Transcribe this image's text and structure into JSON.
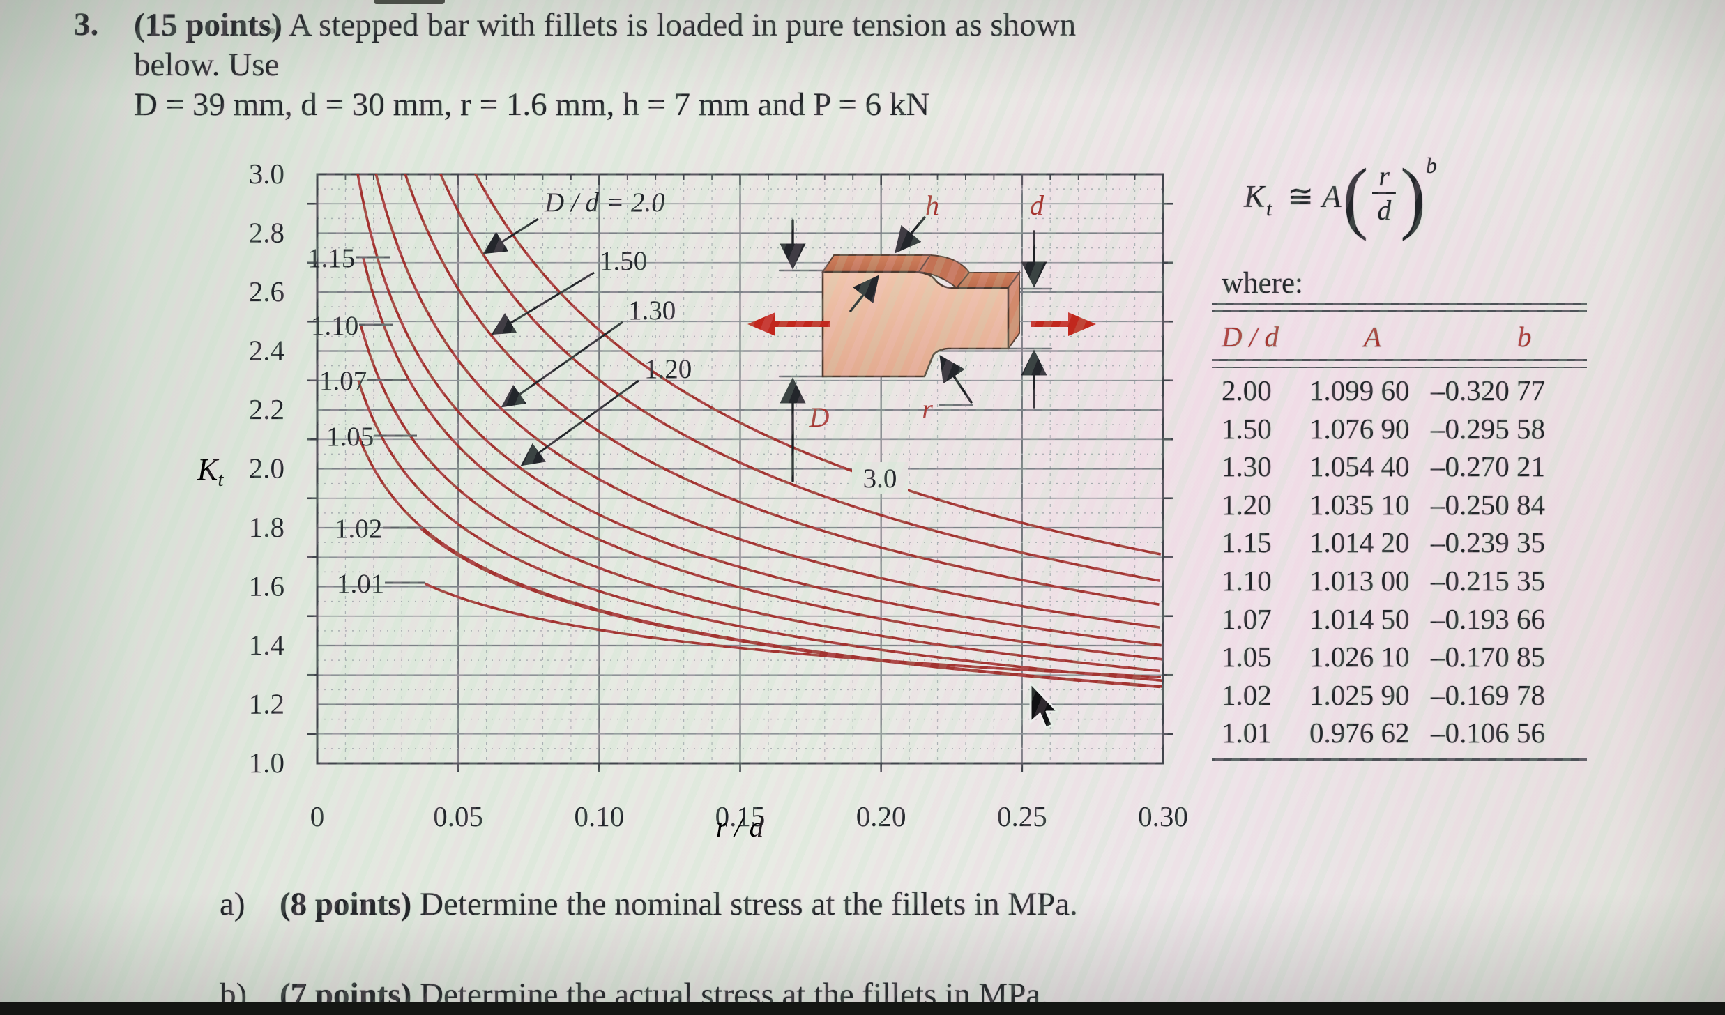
{
  "problem": {
    "number": "3.",
    "points_label": "(15 points)",
    "line1_rest": " A stepped bar with fillets is loaded in pure tension as shown below. Use",
    "line2": "D = 39 mm, d = 30 mm, r = 1.6 mm, h = 7 mm and P = 6 kN",
    "parts": [
      {
        "label": "a)",
        "points": "(8 points)",
        "text": " Determine the nominal stress at the fillets in MPa."
      },
      {
        "label": "b)",
        "points": "(7 points)",
        "text": " Determine the actual stress at the fillets in MPa."
      }
    ]
  },
  "formula": {
    "lhs": "K",
    "lhs_sub": "t",
    "rel": "≅",
    "coeff": "A",
    "open_paren": "(",
    "num": "r",
    "den": "d",
    "close_paren": ")",
    "exp": "b",
    "where_label": "where:"
  },
  "table": {
    "headers": [
      "D / d",
      "A",
      "b"
    ],
    "rows": [
      [
        "2.00",
        "1.099 60",
        "–0.320 77"
      ],
      [
        "1.50",
        "1.076 90",
        "–0.295 58"
      ],
      [
        "1.30",
        "1.054 40",
        "–0.270 21"
      ],
      [
        "1.20",
        "1.035 10",
        "–0.250 84"
      ],
      [
        "1.15",
        "1.014 20",
        "–0.239 35"
      ],
      [
        "1.10",
        "1.013 00",
        "–0.215 35"
      ],
      [
        "1.07",
        "1.014 50",
        "–0.193 66"
      ],
      [
        "1.05",
        "1.026 10",
        "–0.170 85"
      ],
      [
        "1.02",
        "1.025 90",
        "–0.169 78"
      ],
      [
        "1.01",
        "0.976 62",
        "–0.106 56"
      ]
    ]
  },
  "diagram": {
    "labels": {
      "h": "h",
      "d": "d",
      "D": "D",
      "r": "r"
    }
  },
  "chart_data": {
    "type": "line",
    "model": "Kt = A * (r/d)^b",
    "xlabel": "r / d",
    "ylabel_main": "K",
    "ylabel_sub": "t",
    "xlim": [
      0,
      0.3
    ],
    "ylim": [
      1.0,
      3.0
    ],
    "grid": true,
    "curve_color": "#a23330",
    "x_ticks": [
      "0",
      "0.05",
      "0.10",
      "0.15",
      "0.20",
      "0.25",
      "0.30"
    ],
    "y_ticks": [
      "3.0",
      "2.8",
      "2.6",
      "2.4",
      "2.2",
      "2.0",
      "1.8",
      "1.6",
      "1.4",
      "1.2",
      "1.0"
    ],
    "samples_x": [
      0.05,
      0.1,
      0.15,
      0.2,
      0.25,
      0.3
    ],
    "series": [
      {
        "label": "3.0",
        "A": 1.14,
        "b": -0.336,
        "estimated": true,
        "start_kt": 3.0,
        "samples_kt": [
          3.12,
          2.47,
          2.16,
          1.96,
          1.82,
          1.71
        ]
      },
      {
        "label": "D / d = 2.0",
        "A": 1.0996,
        "b": -0.32077,
        "start_kt": 3.0,
        "samples_kt": [
          2.87,
          2.3,
          2.02,
          1.84,
          1.72,
          1.62
        ]
      },
      {
        "label": "1.50",
        "A": 1.0769,
        "b": -0.29558,
        "start_kt": 3.0,
        "samples_kt": [
          2.61,
          2.13,
          1.89,
          1.73,
          1.62,
          1.54
        ]
      },
      {
        "label": "1.30",
        "A": 1.0544,
        "b": -0.27021,
        "start_kt": 3.0,
        "samples_kt": [
          2.37,
          1.96,
          1.76,
          1.63,
          1.53,
          1.46
        ]
      },
      {
        "label": "1.20",
        "A": 1.0351,
        "b": -0.25084,
        "start_kt": 3.0,
        "samples_kt": [
          2.19,
          1.84,
          1.67,
          1.55,
          1.47,
          1.4
        ]
      },
      {
        "label": "1.15",
        "A": 1.0142,
        "b": -0.23935,
        "start_kt": 2.72,
        "samples_kt": [
          2.08,
          1.76,
          1.6,
          1.49,
          1.41,
          1.35
        ]
      },
      {
        "label": "1.10",
        "A": 1.013,
        "b": -0.21535,
        "start_kt": 2.49,
        "samples_kt": [
          1.93,
          1.66,
          1.52,
          1.43,
          1.37,
          1.31
        ]
      },
      {
        "label": "1.07",
        "A": 1.0145,
        "b": -0.19366,
        "start_kt": 2.3,
        "samples_kt": [
          1.81,
          1.58,
          1.46,
          1.39,
          1.33,
          1.28
        ]
      },
      {
        "label": "1.05",
        "A": 1.0261,
        "b": -0.17085,
        "start_kt": 2.11,
        "samples_kt": [
          1.71,
          1.52,
          1.42,
          1.35,
          1.3,
          1.26
        ]
      },
      {
        "label": "1.02",
        "A": 1.0259,
        "b": -0.16978,
        "start_kt": 1.8,
        "samples_kt": [
          1.71,
          1.52,
          1.42,
          1.35,
          1.3,
          1.26
        ]
      },
      {
        "label": "1.01",
        "A": 0.97662,
        "b": -0.10656,
        "start_kt": 1.61,
        "samples_kt": [
          1.34,
          1.25,
          1.2,
          1.16,
          1.13,
          1.11
        ]
      }
    ]
  }
}
